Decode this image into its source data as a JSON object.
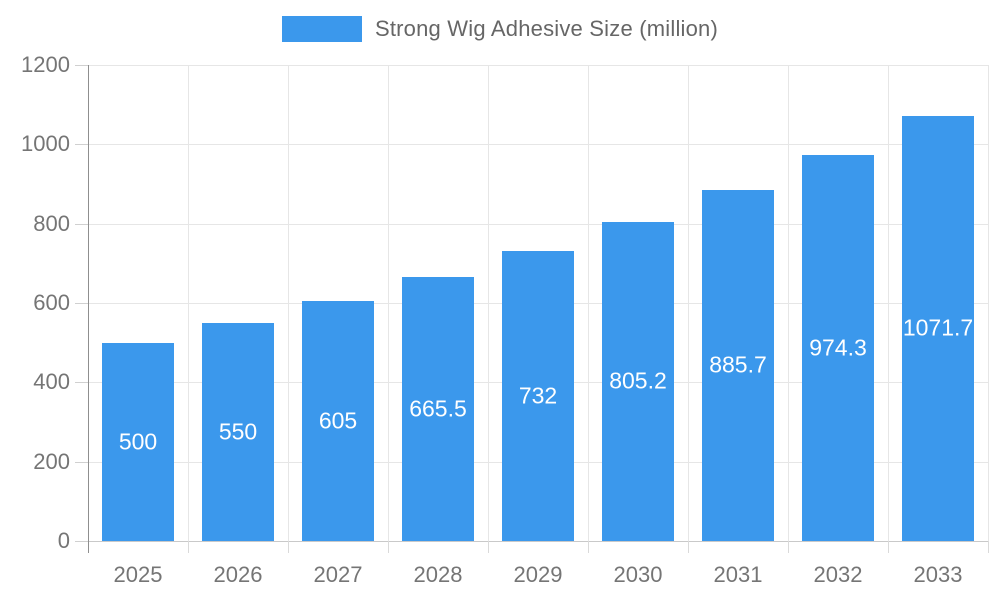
{
  "legend": {
    "label": "Strong Wig Adhesive Size (million)",
    "swatch_color": "#3b98ec"
  },
  "chart_data": {
    "type": "bar",
    "title": "Strong Wig Adhesive Size (million)",
    "categories": [
      "2025",
      "2026",
      "2027",
      "2028",
      "2029",
      "2030",
      "2031",
      "2032",
      "2033"
    ],
    "values": [
      500,
      550,
      605,
      665.5,
      732,
      805.2,
      885.7,
      974.3,
      1071.7
    ],
    "value_labels": [
      "500",
      "550",
      "605",
      "665.5",
      "732",
      "805.2",
      "885.7",
      "974.3",
      "1071.7"
    ],
    "xlabel": "",
    "ylabel": "",
    "ylim": [
      0,
      1200
    ],
    "yticks": [
      0,
      200,
      400,
      600,
      800,
      1000,
      1200
    ],
    "grid": true,
    "legend_position": "top-center",
    "bar_color": "#3b98ec",
    "bar_label_color": "#ffffff",
    "axis_label_color": "#757575",
    "legend_text_color": "#666666",
    "grid_color": "#e6e6e6",
    "axis_line_color": "#8f8f8f"
  }
}
